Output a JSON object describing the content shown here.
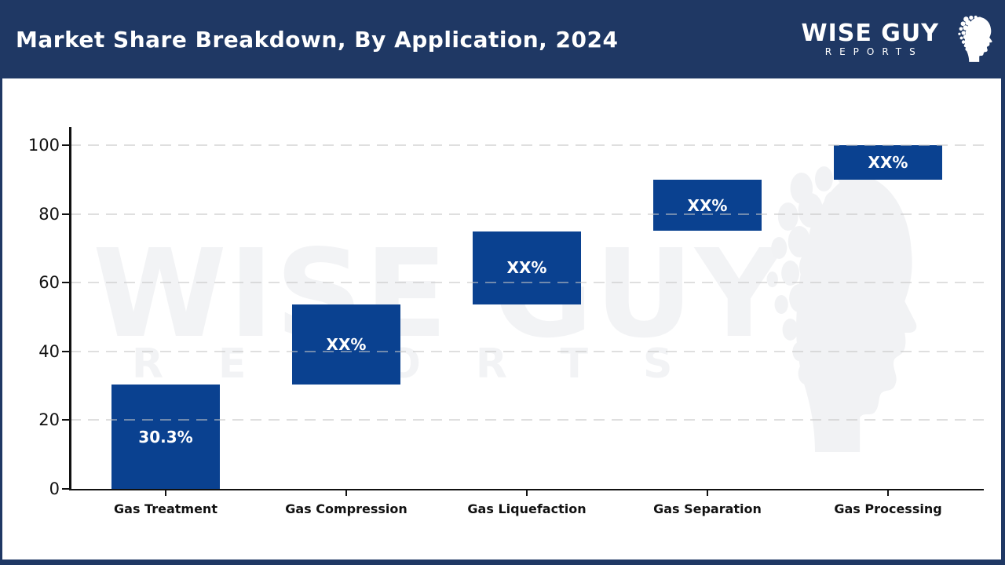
{
  "header": {
    "title": "Market Share Breakdown, By Application, 2024",
    "logo": {
      "line1": "WISE GUY",
      "line2": "REPORTS"
    }
  },
  "watermark": {
    "line1": "WISE GUY",
    "line2": "REPORTS"
  },
  "colors": {
    "header_bg": "#1f3864",
    "bar": "#0a4190",
    "axis": "#111111",
    "grid": "#c5c5c5",
    "bar_label_text": "#ffffff",
    "watermark": "#f2f3f5"
  },
  "chart_data": {
    "type": "bar",
    "subtype": "floating-waterfall",
    "title": "Market Share Breakdown, By Application, 2024",
    "categories": [
      "Gas Treatment",
      "Gas Compression",
      "Gas Liquefaction",
      "Gas Separation",
      "Gas Processing"
    ],
    "segments": [
      {
        "category": "Gas Treatment",
        "start": 0,
        "end": 30.3,
        "label": "30.3%"
      },
      {
        "category": "Gas Compression",
        "start": 30.3,
        "end": 53.7,
        "label": "XX%"
      },
      {
        "category": "Gas Liquefaction",
        "start": 53.7,
        "end": 75,
        "label": "XX%"
      },
      {
        "category": "Gas Separation",
        "start": 75,
        "end": 90,
        "label": "XX%"
      },
      {
        "category": "Gas Processing",
        "start": 90,
        "end": 100,
        "label": "XX%"
      }
    ],
    "yticks": [
      0,
      20,
      40,
      60,
      80,
      100
    ],
    "ytick_labels": [
      "0",
      "20",
      "40",
      "60",
      "80",
      "100"
    ],
    "ylim": [
      0,
      105
    ],
    "xlabel": "",
    "ylabel": "",
    "grid": "horizontal-dashed",
    "legend": false,
    "bar_color": "#0a4190"
  }
}
